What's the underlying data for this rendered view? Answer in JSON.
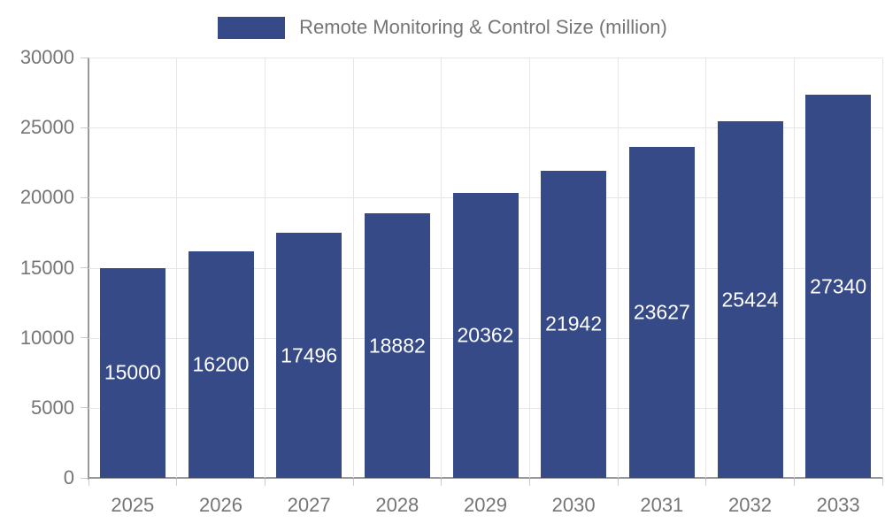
{
  "legend": {
    "label": "Remote Monitoring & Control Size (million)"
  },
  "colors": {
    "bar": "#364A88",
    "axis_line": "#999999",
    "grid_line": "#E6E6E6",
    "tick_line": "#CCCCCC",
    "axis_text": "#757575",
    "bar_label_text": "#FFFFFF",
    "background": "#FFFFFF"
  },
  "chart_data": {
    "type": "bar",
    "title": "",
    "legend_position": "top",
    "categories": [
      "2025",
      "2026",
      "2027",
      "2028",
      "2029",
      "2030",
      "2031",
      "2032",
      "2033"
    ],
    "series": [
      {
        "name": "Remote Monitoring & Control Size (million)",
        "color": "#364A88",
        "values": [
          15000,
          16200,
          17496,
          18882,
          20362,
          21942,
          23627,
          25424,
          27340
        ]
      }
    ],
    "xlabel": "",
    "ylabel": "",
    "ylim": [
      0,
      30000
    ],
    "yticks": [
      0,
      5000,
      10000,
      15000,
      20000,
      25000,
      30000
    ],
    "grid": true,
    "data_labels_visible": true,
    "data_label_position": "inside-middle"
  }
}
